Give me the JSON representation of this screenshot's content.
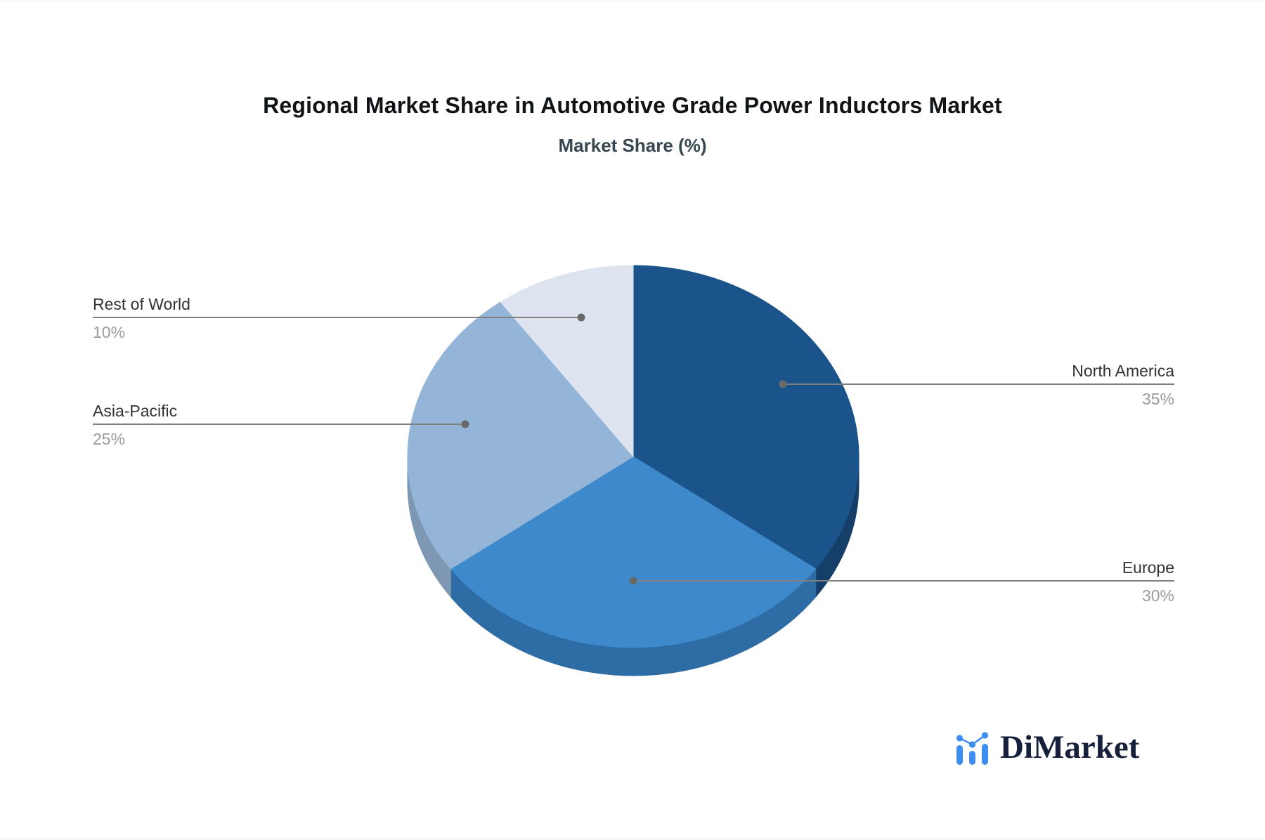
{
  "header": {
    "title": "Regional Market Share in Automotive Grade Power Inductors Market",
    "subtitle": "Market Share (%)"
  },
  "chart_data": {
    "type": "pie",
    "style": "3d",
    "title": "Regional Market Share in Automotive Grade Power Inductors Market",
    "subtitle": "Market Share (%)",
    "unit": "%",
    "start_angle_deg": 0,
    "direction": "clockwise",
    "legend_position": "callout-labels",
    "slices": [
      {
        "label": "North America",
        "value": 35,
        "display": "35%",
        "color": "#1A548B",
        "side_color": "#153F68"
      },
      {
        "label": "Europe",
        "value": 30,
        "display": "30%",
        "color": "#3D89CB",
        "side_color": "#2D6CA4"
      },
      {
        "label": "Asia-Pacific",
        "value": 25,
        "display": "25%",
        "color": "#94B5D8",
        "side_color": "#7E97B3"
      },
      {
        "label": "Rest of World",
        "value": 10,
        "display": "10%",
        "color": "#DDE4F0",
        "side_color": "#C5CEDE"
      }
    ],
    "callout_line_color": "#7f7f7f",
    "callout_dot_color": "#696969",
    "label_text_color": "#333333",
    "percent_text_color": "#9b9b9b"
  },
  "branding": {
    "logo_text": "DiMarket",
    "logo_icon": "bar-line-chart-icon",
    "logo_text_color": "#16203a",
    "logo_icon_color": "#3E8DF2"
  }
}
